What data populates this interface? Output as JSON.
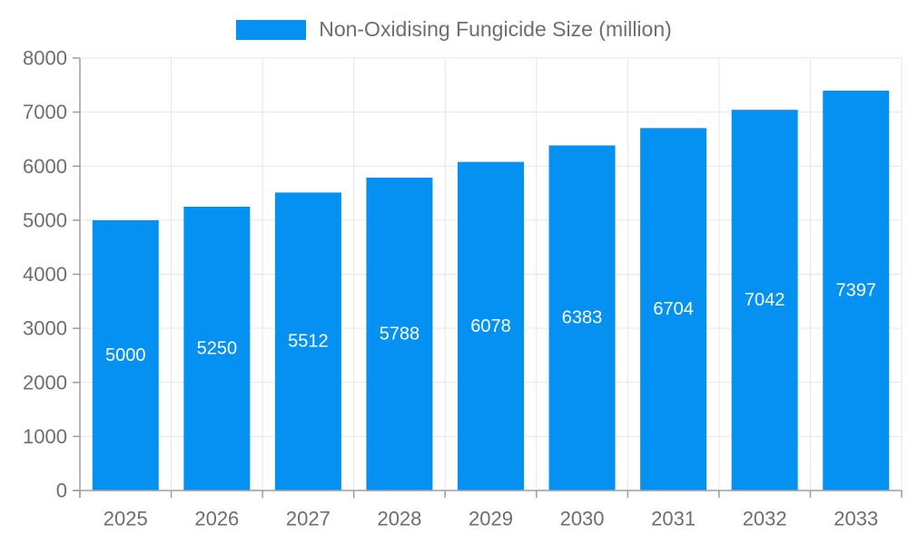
{
  "legend": {
    "label": "Non-Oxidising Fungicide Size (million)"
  },
  "chart_data": {
    "type": "bar",
    "title": "",
    "xlabel": "",
    "ylabel": "",
    "categories": [
      "2025",
      "2026",
      "2027",
      "2028",
      "2029",
      "2030",
      "2031",
      "2032",
      "2033"
    ],
    "values": [
      5000,
      5250,
      5512,
      5788,
      6078,
      6383,
      6704,
      7042,
      7397
    ],
    "series_name": "Non-Oxidising Fungicide Size (million)",
    "ylim": [
      0,
      8000
    ],
    "yticks": [
      0,
      1000,
      2000,
      3000,
      4000,
      5000,
      6000,
      7000,
      8000
    ],
    "grid": true,
    "legend_position": "top",
    "bar_color": "#0591f2",
    "bar_label_color": "#ffffff",
    "grid_color": "#e6e6e6",
    "axis_color": "#9e9e9e",
    "text_color": "#6e6e6e"
  }
}
